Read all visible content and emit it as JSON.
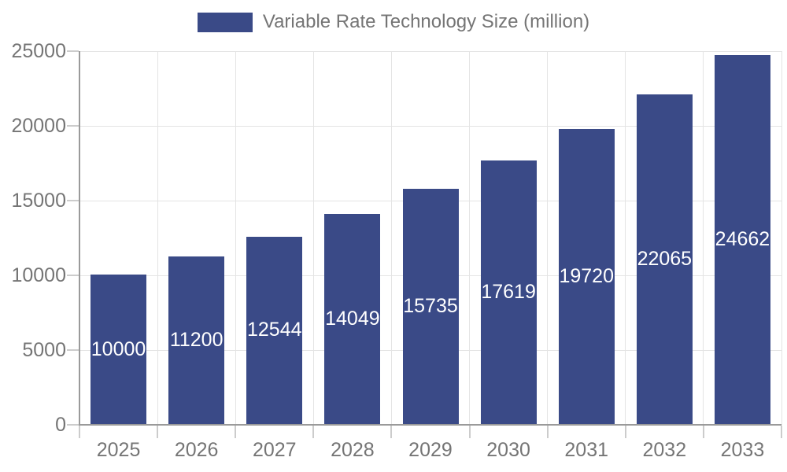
{
  "chart_data": {
    "type": "bar",
    "title": "Variable Rate Technology Size (million)",
    "legend": {
      "position": "top",
      "entries": [
        "Variable Rate Technology Size (million)"
      ]
    },
    "categories": [
      "2025",
      "2026",
      "2027",
      "2028",
      "2029",
      "2030",
      "2031",
      "2032",
      "2033"
    ],
    "values": [
      10000,
      11200,
      12544,
      14049,
      15735,
      17619,
      19720,
      22065,
      24662
    ],
    "xlabel": "",
    "ylabel": "",
    "ylim": [
      0,
      25000
    ],
    "yticks": [
      0,
      5000,
      10000,
      15000,
      20000,
      25000
    ],
    "grid": true,
    "colors": {
      "bar": "#3a4a87",
      "bar_label": "#ffffff",
      "axis_line": "#9a9a9a",
      "tick_mark": "#cccccc",
      "gridline": "#e4e4e4",
      "axis_text": "#757575",
      "background": "#ffffff"
    }
  }
}
